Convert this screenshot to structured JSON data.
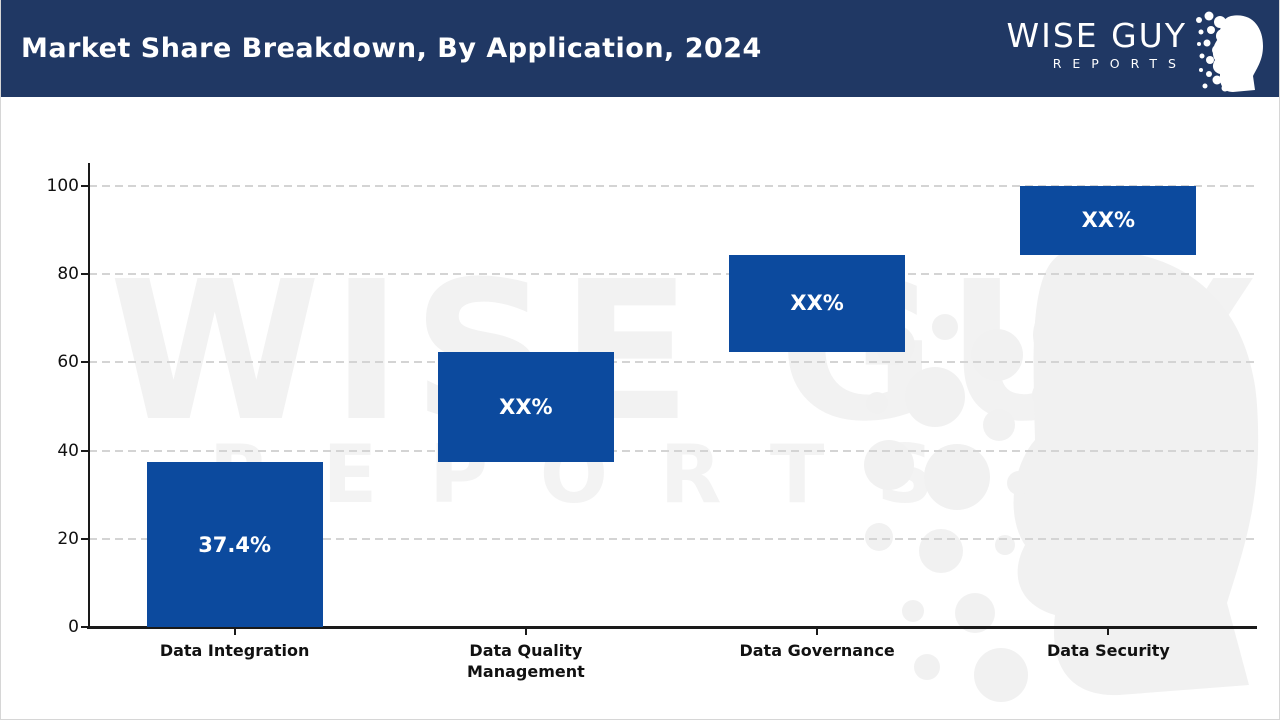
{
  "header": {
    "title": "Market Share Breakdown, By Application, 2024",
    "bg_color": "#203864",
    "brand": {
      "line1": "WISE GUY",
      "line2": "REPORTS"
    }
  },
  "watermark": {
    "line1": "WISE GUY",
    "line2": "REPORTS"
  },
  "chart_data": {
    "type": "bar",
    "subtype": "waterfall",
    "title": "Market Share Breakdown, By Application, 2024",
    "categories": [
      "Data Integration",
      "Data Quality Management",
      "Data Governance",
      "Data Security"
    ],
    "series": [
      {
        "name": "Market Share",
        "segment_start": [
          0,
          37.4,
          62.4,
          84.4
        ],
        "segment_end": [
          37.4,
          62.4,
          84.4,
          100
        ]
      }
    ],
    "bar_labels": [
      "37.4%",
      "XX%",
      "XX%",
      "XX%"
    ],
    "xlabel": "",
    "ylabel": "",
    "yticks": [
      0,
      20,
      40,
      60,
      80,
      100
    ],
    "ylim": [
      0,
      105
    ],
    "grid": "horizontal-dashed",
    "legend": "none",
    "bar_color": "#0c4a9e",
    "label_color": "#ffffff",
    "axis_color": "#1a1a1a",
    "gridline_color": "#d4d4d4"
  }
}
